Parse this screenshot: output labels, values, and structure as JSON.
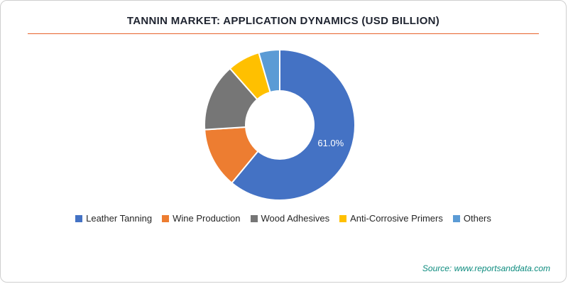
{
  "title": "TANNIN MARKET: APPLICATION DYNAMICS (USD BILLION)",
  "source": "Source: www.reportsanddata.com",
  "accent": {
    "divider_color": "#e8632c",
    "source_color": "#0e8c7f",
    "title_color": "#1f2430"
  },
  "chart_data": {
    "type": "pie",
    "subtype": "donut",
    "title": "TANNIN MARKET: APPLICATION DYNAMICS (USD BILLION)",
    "categories": [
      "Leather Tanning",
      "Wine Production",
      "Wood Adhesives",
      "Anti-Corrosive Primers",
      "Others"
    ],
    "values": [
      61.0,
      13.0,
      14.5,
      7.0,
      4.5
    ],
    "colors": [
      "#4472c4",
      "#ed7d31",
      "#767676",
      "#ffc000",
      "#5b9bd5"
    ],
    "data_labels": [
      "61.0%",
      "",
      "",
      "",
      ""
    ],
    "legend_position": "bottom",
    "start_angle_deg": 0,
    "direction": "clockwise",
    "inner_radius_ratio": 0.45,
    "units": "USD Billion"
  }
}
